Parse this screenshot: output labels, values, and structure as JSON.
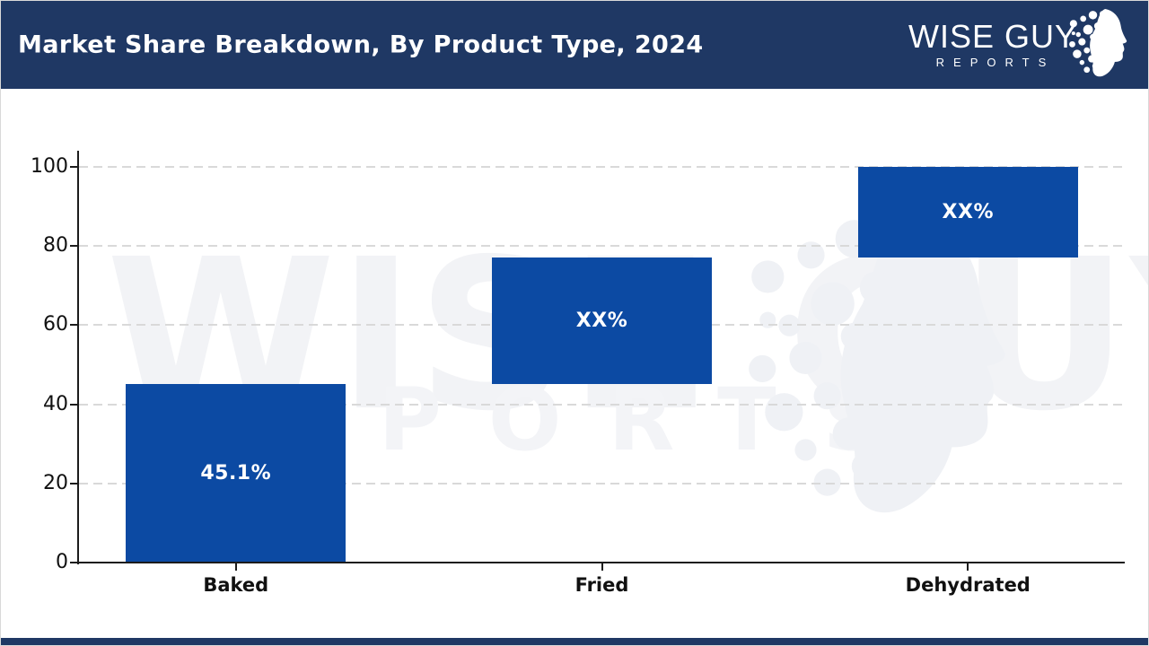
{
  "header": {
    "title": "Market Share Breakdown, By Product Type, 2024",
    "logo_line1": "WISE GUY",
    "logo_line2": "REPORTS"
  },
  "watermark": {
    "line1": "WISE GUY",
    "line2": "REPORTS"
  },
  "colors": {
    "header_bg": "#1f3864",
    "footer_bg": "#1f3864",
    "bar": "#0c4aa3",
    "bar_label": "#ffffff",
    "gridline": "#d9d9d9",
    "axis": "#1c1c1c",
    "tick_label": "#111111",
    "watermark_text": "#f2f3f6",
    "watermark_face": "#eff1f5"
  },
  "chart_data": {
    "type": "bar",
    "subtype": "floating-waterfall",
    "title": "Market Share Breakdown, By Product Type, 2024",
    "categories": [
      "Baked",
      "Fried",
      "Dehydrated"
    ],
    "segments": [
      {
        "category": "Baked",
        "start": 0,
        "end": 45.1,
        "label": "45.1%"
      },
      {
        "category": "Fried",
        "start": 45.1,
        "end": 77,
        "label": "XX%"
      },
      {
        "category": "Dehydrated",
        "start": 77,
        "end": 100,
        "label": "XX%"
      }
    ],
    "xlabel": "",
    "ylabel": "",
    "ylim": [
      0,
      100
    ],
    "yticks": [
      0,
      20,
      40,
      60,
      80,
      100
    ],
    "grid": "horizontal-dashed",
    "legend": "none",
    "bar_color": "#0c4aa3",
    "label_color": "#ffffff"
  }
}
